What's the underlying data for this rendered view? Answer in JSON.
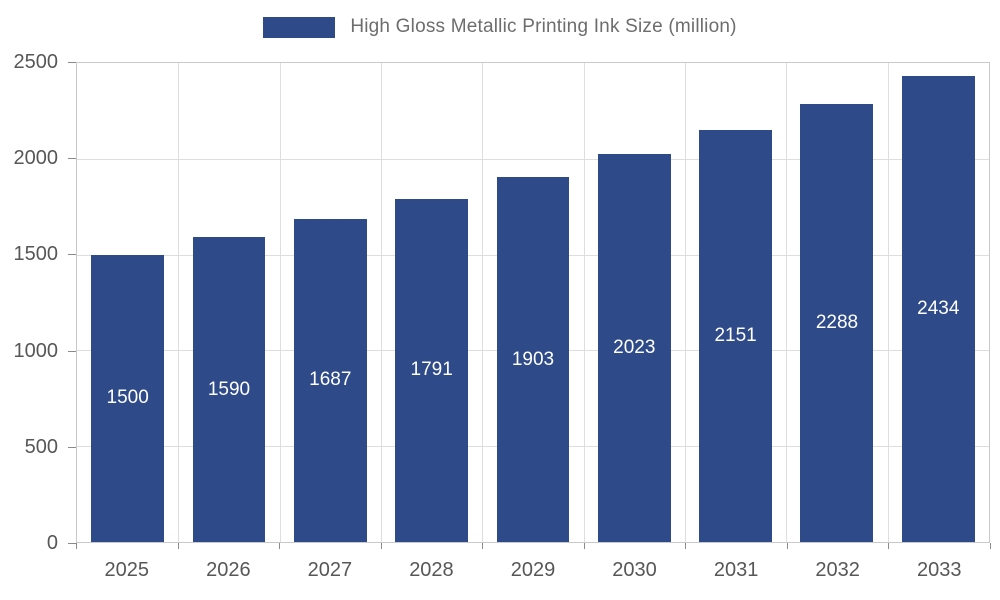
{
  "chart_data": {
    "type": "bar",
    "title": "High Gloss Metallic Printing Ink Size (million)",
    "categories": [
      "2025",
      "2026",
      "2027",
      "2028",
      "2029",
      "2030",
      "2031",
      "2032",
      "2033"
    ],
    "values": [
      1500,
      1590,
      1687,
      1791,
      1903,
      2023,
      2151,
      2288,
      2434
    ],
    "xlabel": "",
    "ylabel": "",
    "ylim": [
      0,
      2500
    ],
    "yticks": [
      0,
      500,
      1000,
      1500,
      2000,
      2500
    ],
    "grid": true,
    "legend_position": "top",
    "bar_color": "#2e4a89",
    "bar_label_color": "#ffffff",
    "axis_text_color": "#575757",
    "title_color": "#6d6d6d",
    "gridline_color": "#dedede",
    "border_color": "#c9c9c9"
  }
}
